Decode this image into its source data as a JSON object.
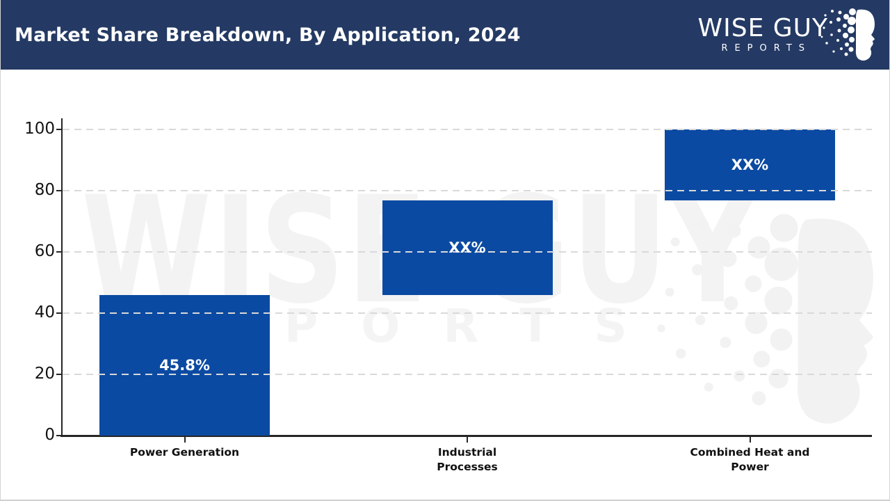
{
  "header": {
    "title": "Market Share Breakdown, By Application, 2024",
    "logo": {
      "line1": "WISE GUY",
      "line2": "REPORTS"
    }
  },
  "watermark": {
    "line1": "WISE GUY",
    "line2": "REPORTS"
  },
  "chart_data": {
    "type": "bar",
    "variant": "floating-segment-bars (waterfall of market share %)",
    "title": "Market Share Breakdown, By Application, 2024",
    "categories": [
      "Power Generation",
      "Industrial Processes",
      "Combined Heat and Power"
    ],
    "category_lines": [
      [
        "Power Generation"
      ],
      [
        "Industrial",
        "Processes"
      ],
      [
        "Combined Heat and",
        "Power"
      ]
    ],
    "bars": [
      {
        "category": "Power Generation",
        "start": 0,
        "end": 45.8,
        "label": "45.8%"
      },
      {
        "category": "Industrial Processes",
        "start": 45.8,
        "end": 76.8,
        "label": "XX%"
      },
      {
        "category": "Combined Heat and Power",
        "start": 76.8,
        "end": 100,
        "label": "XX%"
      }
    ],
    "xlabel": "",
    "ylabel": "",
    "ylim": [
      0,
      100
    ],
    "yticks": [
      0,
      20,
      40,
      60,
      80,
      100
    ],
    "grid": "horizontal-dashed, drawn over bars",
    "legend": "none",
    "bar_color": "#0b4aa2",
    "label_color": "#ffffff",
    "axis_color": "#262626",
    "grid_color": "#d9d9d9"
  },
  "colors": {
    "header_bg": "#243a64",
    "bar_blue": "#0b4aa2",
    "watermark_gray": "#f3f3f3"
  }
}
